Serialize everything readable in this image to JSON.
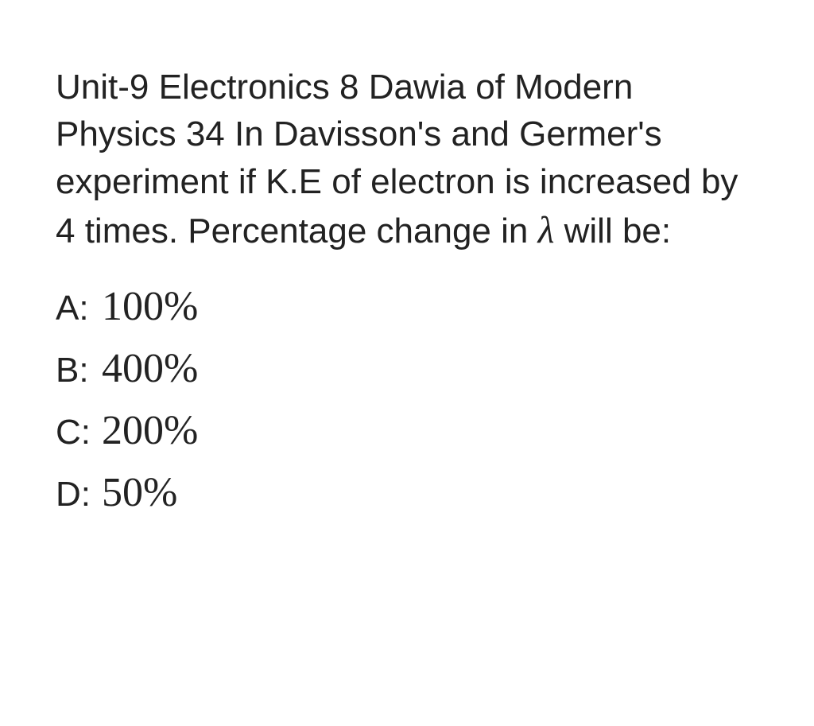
{
  "question": {
    "text_part1": "Unit-9 Electronics 8 Dawia of Modern Physics 34 In Davisson's and Germer's experiment if K.E of electron is increased by 4 times. Percentage change in ",
    "lambda": "λ",
    "text_part2": " will be:",
    "font_size": 44,
    "text_color": "#222222",
    "background_color": "#ffffff"
  },
  "options": [
    {
      "letter": "A:",
      "value": "100%"
    },
    {
      "letter": "B:",
      "value": "400%"
    },
    {
      "letter": "C:",
      "value": "200%"
    },
    {
      "letter": "D:",
      "value": "50%"
    }
  ],
  "styling": {
    "option_font_size": 44,
    "option_value_font_size": 52,
    "option_value_font_family": "Times New Roman",
    "question_font_family": "Arial",
    "line_height": 1.35
  }
}
